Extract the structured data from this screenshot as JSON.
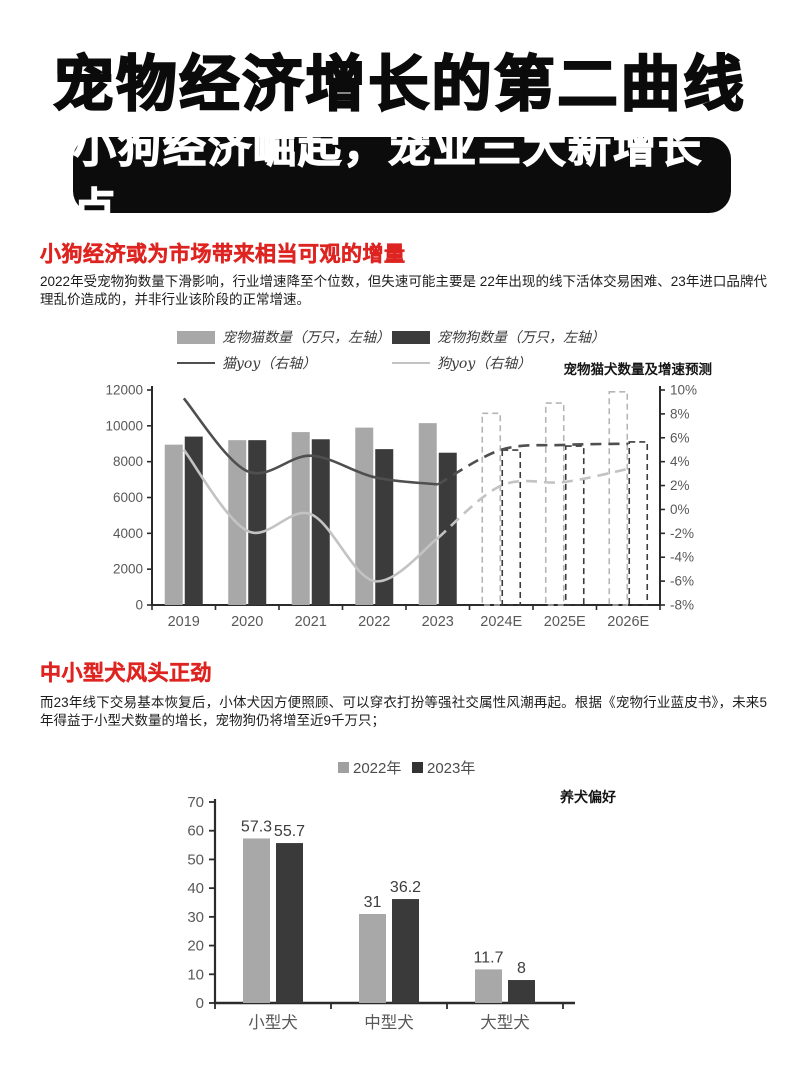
{
  "page": {
    "title": "宠物经济增长的第二曲线",
    "banner": "小狗经济崛起，宠业三大新增长点"
  },
  "section1": {
    "heading": "小狗经济或为市场带来相当可观的增量",
    "body": "2022年受宠物狗数量下滑影响，行业增速降至个位数，但失速可能主要是 22年出现的线下活体交易困难、23年进口品牌代理乱价造成的，并非行业该阶段的正常增速。"
  },
  "section2": {
    "heading": "中小型犬风头正劲",
    "body": "而23年线下交易基本恢复后，小体犬因方便照顾、可以穿衣打扮等强社交属性风潮再起。根据《宠物行业蓝皮书》，未来5年得益于小型犬数量的增长，宠物狗仍将增至近9千万只；"
  },
  "colors": {
    "accent_red": "#de2421",
    "gray_bar": "#a8a8a8",
    "dark_bar": "#3b3b3b",
    "cat_line": "#4f4f4f",
    "dog_line": "#c3c3c3",
    "axis": "#2b2b2b",
    "tick_label": "#595959"
  },
  "chart_data": [
    {
      "type": "bar",
      "subtype": "combo-bar-line-dual-axis",
      "title": "宠物猫犬数量及增速预测",
      "categories": [
        "2019",
        "2020",
        "2021",
        "2022",
        "2023",
        "2024E",
        "2025E",
        "2026E"
      ],
      "forecast_from_index": 5,
      "line_forecast_from_index": 4,
      "bar_series": [
        {
          "name": "宠物猫数量（万只，左轴）",
          "color": "#a8a8a8",
          "dash_color": "#b5b5b5",
          "values": [
            8950,
            9200,
            9650,
            9900,
            10150,
            10700,
            11270,
            11900
          ]
        },
        {
          "name": "宠物狗数量（万只，左轴）",
          "color": "#3b3b3b",
          "dash_color": "#3b3b3b",
          "values": [
            9400,
            9200,
            9250,
            8700,
            8500,
            8650,
            8870,
            9100
          ]
        }
      ],
      "line_series": [
        {
          "name": "猫yoy（右轴）",
          "color": "#4f4f4f",
          "values": [
            9.3,
            3.2,
            4.5,
            2.7,
            2.1,
            5.0,
            5.4,
            5.5
          ]
        },
        {
          "name": "狗yoy（右轴）",
          "color": "#c3c3c3",
          "values": [
            5.0,
            -1.8,
            -0.4,
            -6.0,
            -2.4,
            2.0,
            2.3,
            3.4
          ]
        }
      ],
      "left_axis": {
        "min": 0,
        "max": 12000,
        "step": 2000
      },
      "right_axis": {
        "min": -8,
        "max": 10,
        "step": 2,
        "suffix": "%"
      },
      "grid": false,
      "legend_position": "top"
    },
    {
      "type": "bar",
      "title": "养犬偏好",
      "categories": [
        "小型犬",
        "中型犬",
        "大型犬"
      ],
      "series": [
        {
          "name": "2022年",
          "color": "#a8a8a8",
          "values": [
            57.3,
            31,
            11.7
          ]
        },
        {
          "name": "2023年",
          "color": "#3a3a3a",
          "values": [
            55.7,
            36.2,
            8
          ]
        }
      ],
      "ylim": [
        0,
        70
      ],
      "ystep": 10,
      "data_labels": true,
      "grid": false,
      "legend_position": "top"
    }
  ]
}
